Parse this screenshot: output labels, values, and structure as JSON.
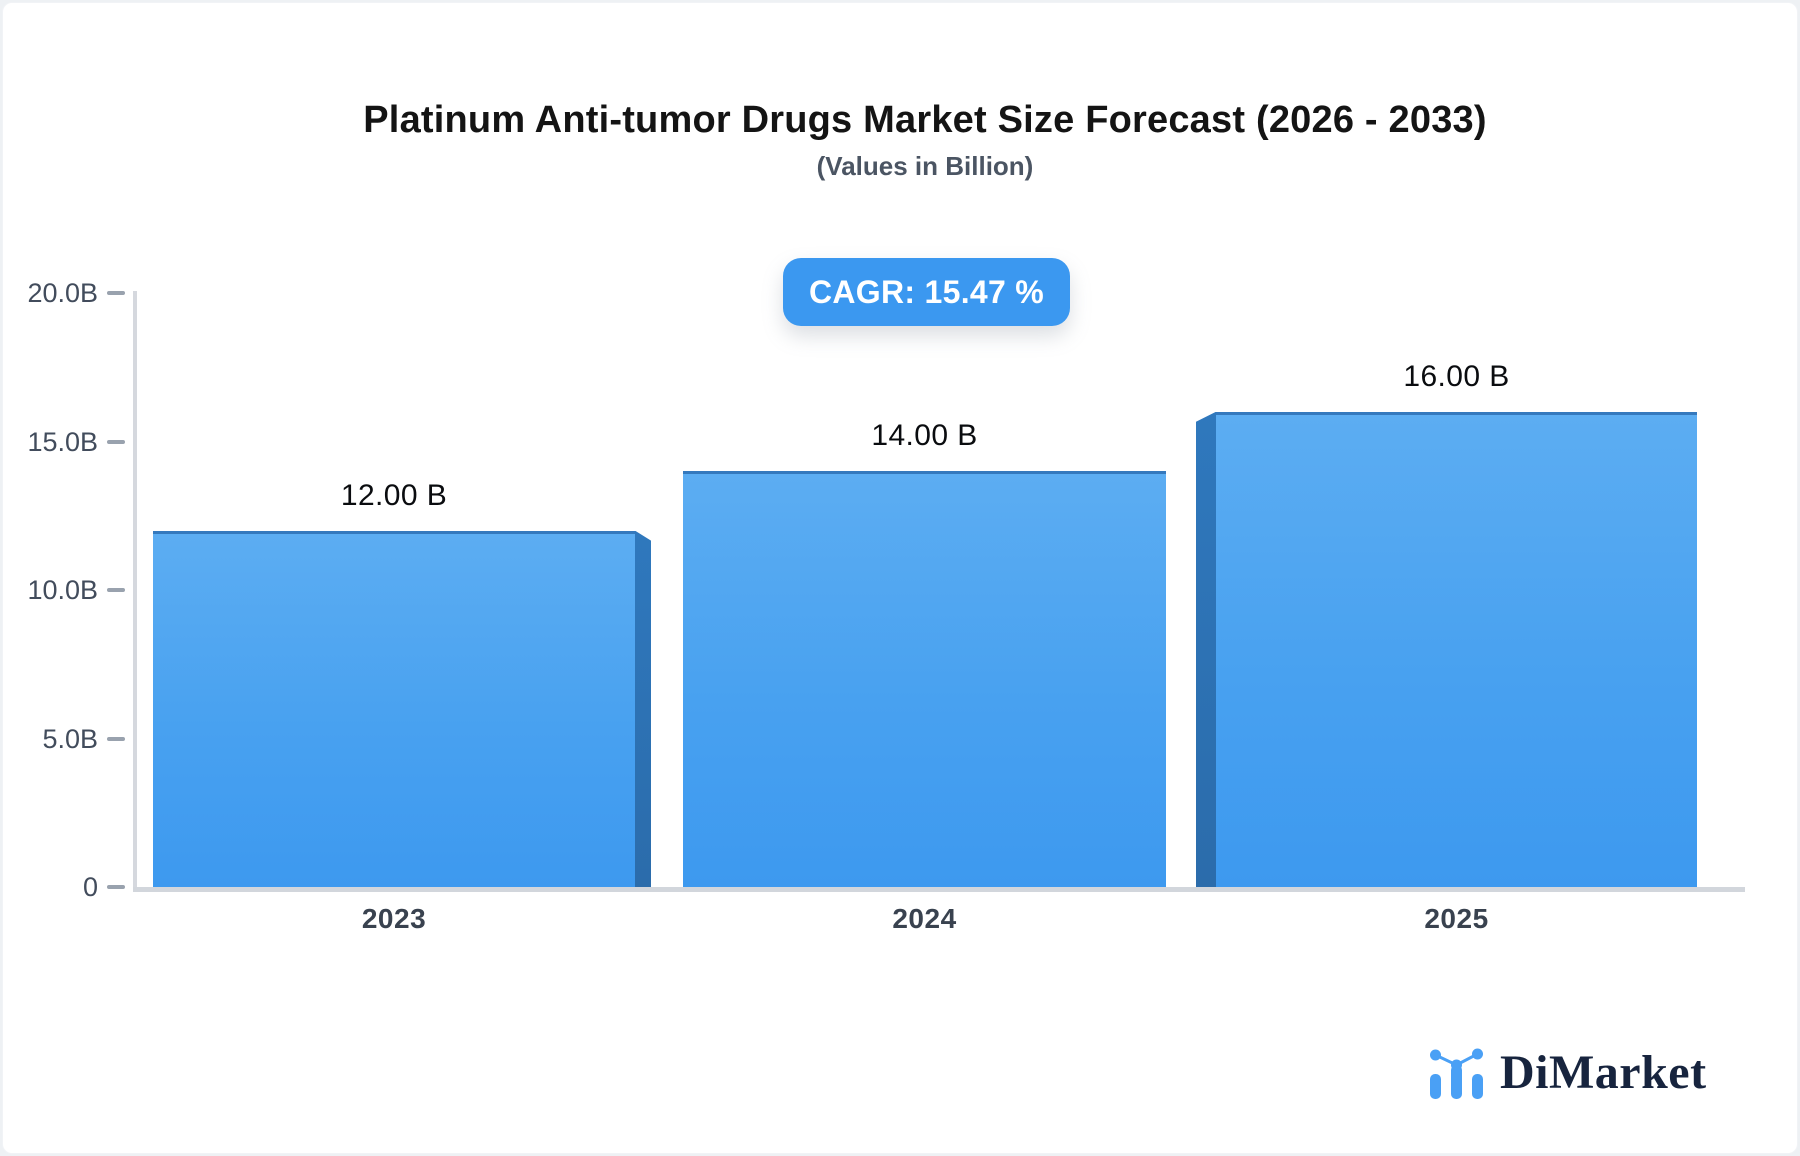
{
  "header": {
    "title": "Platinum Anti-tumor Drugs Market Size Forecast (2026 - 2033)",
    "subtitle": "(Values in Billion)",
    "cagr_badge": "CAGR: 15.47 %"
  },
  "chart_data": {
    "type": "bar",
    "title": "Platinum Anti-tumor Drugs Market Size Forecast (2026 - 2033)",
    "subtitle": "(Values in Billion)",
    "cagr_pct": 15.47,
    "categories": [
      "2023",
      "2024",
      "2025"
    ],
    "values": [
      12,
      14,
      16
    ],
    "data_labels": [
      "12.00 B",
      "14.00 B",
      "16.00 B"
    ],
    "xlabel": "",
    "ylabel": "",
    "ylim": [
      0,
      20
    ],
    "yticks": [
      {
        "label": "20.0B",
        "value": 20
      },
      {
        "label": "15.0B",
        "value": 15
      },
      {
        "label": "10.0B",
        "value": 10
      },
      {
        "label": "5.0B",
        "value": 5
      },
      {
        "label": "0",
        "value": 0
      }
    ],
    "grid": false,
    "legend": false,
    "bar_color_top": "#5cadf2",
    "bar_color_bottom": "#3d99ef",
    "bar_side_color": "#2e73b5"
  },
  "footer": {
    "brand": "DiMarket"
  },
  "colors": {
    "accent_blue": "#3b98f0",
    "axis_line": "#d5d8de",
    "tick_dash": "#99a2ae",
    "axis_text": "#39424f",
    "title_text": "#141414",
    "subtitle_text": "#4b5563",
    "logo_text": "#17243e",
    "logo_icon": "#4aa0f5"
  }
}
